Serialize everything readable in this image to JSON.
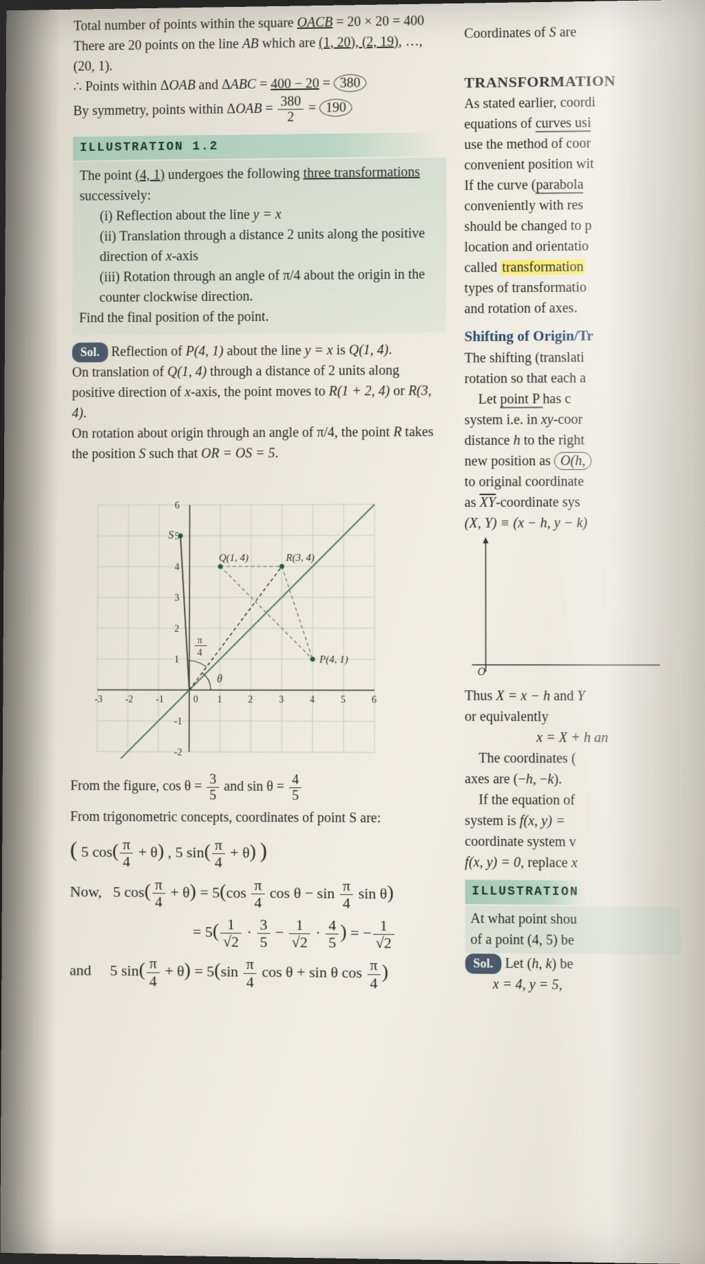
{
  "top": {
    "line1_a": "Total number of points within the square ",
    "line1_b": "OACB",
    "line1_c": " = 20 × 20 = 400",
    "line2_a": "There are 20 points on the line ",
    "line2_b": "AB",
    "line2_c": " which are ",
    "line2_d": "(1, 20), (2, 19)",
    "line2_e": ", …,",
    "line3": "(20, 1).",
    "line4_a": "∴  Points within Δ",
    "line4_b": "OAB",
    "line4_c": " and Δ",
    "line4_d": "ABC",
    "line4_e": " = ",
    "line4_f": "400 − 20",
    "line4_g": " = ",
    "line4_h": "380",
    "line5_a": "By symmetry, points within Δ",
    "line5_b": "OAB",
    "line5_c": " = ",
    "frac_num": "380",
    "frac_den": "2",
    "line5_d": " = ",
    "line5_e": "190"
  },
  "illus": {
    "title": "ILLUSTRATION 1.2",
    "p1_a": "The point ",
    "p1_b": "(4, 1)",
    "p1_c": " undergoes the following ",
    "p1_d": "three transformations",
    "p1_e": " successively:",
    "i1_a": "(i) Reflection about the line ",
    "i1_b": "y = x",
    "i2_a": "(ii) Translation through a distance 2 units along the positive direction of ",
    "i2_b": "x",
    "i2_c": "-axis",
    "i3_a": "(iii) Rotation through an angle of π/4 about the origin in the counter clockwise direction.",
    "p2": "Find the final position of the point."
  },
  "sol": {
    "badge": "Sol.",
    "l1_a": " Reflection of ",
    "l1_b": "P(4, 1)",
    "l1_c": " about the line ",
    "l1_d": "y = x",
    "l1_e": " is ",
    "l1_f": "Q(1, 4)",
    "l1_g": ".",
    "l2_a": "On translation of ",
    "l2_b": "Q(1, 4)",
    "l2_c": " through a distance of 2 units along positive direction of ",
    "l2_d": "x",
    "l2_e": "-axis, the point moves to ",
    "l2_f": "R(1 + 2, 4)",
    "l2_g": " or ",
    "l2_h": "R(3, 4)",
    "l2_i": ".",
    "l3_a": "On rotation about origin through an angle of π/4, the point ",
    "l3_b": "R",
    "l3_c": " takes the position ",
    "l3_d": "S",
    "l3_e": " such that ",
    "l3_f": "OR = OS = 5",
    "l3_g": "."
  },
  "graph": {
    "xmin": -3,
    "xmax": 6,
    "ymin": -2,
    "ymax": 6,
    "grid_color": "#b8c4b8",
    "axis_color": "#3a3a3a",
    "line_color": "#5a7a5a",
    "dash_color": "#6a6a6a",
    "points": {
      "P": {
        "x": 4,
        "y": 1,
        "label": "P(4, 1)"
      },
      "Q": {
        "x": 1,
        "y": 4,
        "label": "Q(1, 4)"
      },
      "R": {
        "x": 3,
        "y": 4,
        "label": "R(3, 4)"
      },
      "S": {
        "x": -0.3,
        "y": 5,
        "label": "S"
      }
    },
    "origin_label": "0",
    "theta_label": "θ",
    "pi4_label": "π/4",
    "xticks": [
      -3,
      -2,
      -1,
      1,
      2,
      3,
      4,
      5,
      6
    ],
    "yticks": [
      -2,
      -1,
      1,
      2,
      3,
      4,
      5,
      6
    ]
  },
  "after": {
    "l1_a": "From the figure, cos θ = ",
    "f1_num": "3",
    "f1_den": "5",
    "l1_b": " and sin θ = ",
    "f2_num": "4",
    "f2_den": "5",
    "l2": "From trigonometric concepts, coordinates of point S are:",
    "eq1_a": "5 cos",
    "eq1_b": "+ θ",
    "eq1_c": ", 5 sin",
    "eq1_d": "+ θ",
    "now": "Now,",
    "eq2_lhs_a": "5 cos",
    "eq2_lhs_b": "+ θ",
    "eq2_rhs_a": "= 5",
    "eq2_rhs_b": "cos",
    "eq2_rhs_c": "cos θ − sin",
    "eq2_rhs_d": "sin θ",
    "eq3_a": "= 5",
    "eq3_f1n": "1",
    "eq3_f1d": "√2",
    "eq3_dot1": "·",
    "eq3_f2n": "3",
    "eq3_f2d": "5",
    "eq3_minus": "−",
    "eq3_f3n": "1",
    "eq3_f3d": "√2",
    "eq3_dot2": "·",
    "eq3_f4n": "4",
    "eq3_f4d": "5",
    "eq3_eq": "= −",
    "eq3_f5n": "1",
    "eq3_f5d": "√2",
    "and": "and",
    "eq4_lhs_a": "5 sin",
    "eq4_lhs_b": "+ θ",
    "eq4_rhs_a": "= 5",
    "eq4_rhs_b": "sin",
    "eq4_rhs_c": "cos θ + sin θ cos",
    "pi4n": "π",
    "pi4d": "4"
  },
  "side": {
    "top1": "Coordinates of ",
    "top1b": "S",
    "top1c": " are",
    "h1": "TRANSFORMATION",
    "p1": "As stated earlier, coordi",
    "p2_a": "equations of ",
    "p2_b": "curves usi",
    "p3": "use the method of coor",
    "p4": "convenient position wit",
    "p5_a": "If the curve (",
    "p5_b": "parabola",
    "p6": "conveniently with res",
    "p7": "should be changed to p",
    "p8": "location and orientatio",
    "p9_a": "called ",
    "p9_b": "transformation",
    "p10": "types of transformatio",
    "p11": "and rotation of axes.",
    "h2": "Shifting of Origin/Tr",
    "p12": "The shifting (translati",
    "p13": "rotation so that each a",
    "p14_a": "Let ",
    "p14_b": "point P ",
    "p14_c": "has c",
    "p15_a": "system i.e. in ",
    "p15_b": "xy",
    "p15_c": "-coor",
    "p16_a": "distance ",
    "p16_b": "h",
    "p16_c": " to the right",
    "p17_a": "new position as ",
    "p17_b": "O(h, ",
    "p18": "to original coordinate",
    "p19_a": "as ",
    "p19_b": "XY",
    "p19_c": "-coordinate sys",
    "p20_a": "(X, Y) ≡ (x − h, y − k)",
    "mid1_a": "Thus ",
    "mid1_b": "X = x − h",
    "mid1_c": " and ",
    "mid1_d": "Y",
    "mid2": "or equivalently",
    "mid3": "x = X + h an",
    "mid4": "The coordinates (",
    "mid5_a": "axes are (−",
    "mid5_b": "h",
    "mid5_c": ", −",
    "mid5_d": "k",
    "mid5_e": ").",
    "mid6": "If the equation of",
    "mid7_a": "system is ",
    "mid7_b": "f(x, y) =",
    "mid8": "coordinate system v",
    "mid9_a": "f(x, y) = 0",
    "mid9_b": ", replace ",
    "mid9_c": "x",
    "illus2": "ILLUSTRATION",
    "q1": "At what point shou",
    "q2": "of a point (4, 5) be",
    "sol2": "Sol.",
    "a1_a": " Let (",
    "a1_b": "h, k",
    "a1_c": ") be",
    "a2": "x = 4, y = 5,",
    "O": "O"
  }
}
